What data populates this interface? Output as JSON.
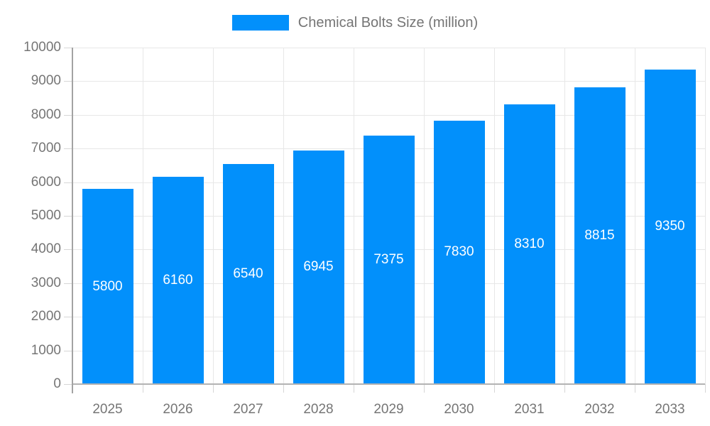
{
  "chart_data": {
    "type": "bar",
    "title": "Chemical Bolts Size (million)",
    "categories": [
      "2025",
      "2026",
      "2027",
      "2028",
      "2029",
      "2030",
      "2031",
      "2032",
      "2033"
    ],
    "series": [
      {
        "name": "Chemical Bolts Size (million)",
        "values": [
          5800,
          6160,
          6540,
          6945,
          7375,
          7830,
          8310,
          8815,
          9350
        ]
      }
    ],
    "data_labels": [
      "5800",
      "6160",
      "6540",
      "6945",
      "7375",
      "7830",
      "8310",
      "8815",
      "9350"
    ],
    "xlabel": "",
    "ylabel": "",
    "ylim": [
      0,
      10000
    ],
    "ytick_step": 1000,
    "yticks": [
      0,
      1000,
      2000,
      3000,
      4000,
      5000,
      6000,
      7000,
      8000,
      9000,
      10000
    ],
    "grid": "on",
    "legend_position": "top",
    "colors": {
      "bar": "#0290FB",
      "bar_value_text": "#FFFFFF",
      "grid": "#E7E7E7",
      "y_axis_line": "#A3A3A3",
      "x_axis_line": "#B3B3B3",
      "tick": "#D6D6D6",
      "axis_text": "#757575",
      "legend_text": "#757575",
      "background": "#FFFFFF"
    }
  }
}
